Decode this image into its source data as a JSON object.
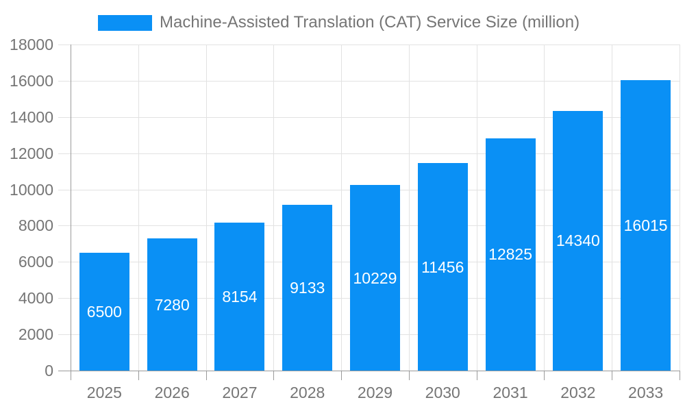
{
  "legend": {
    "label": "Machine-Assisted Translation (CAT) Service Size (million)"
  },
  "colors": {
    "bar": "#0a90f5",
    "grid": "#e2e2e2",
    "axis": "#9a9a9a",
    "text": "#757575",
    "value_label": "#ffffff",
    "background": "#ffffff"
  },
  "chart_data": {
    "type": "bar",
    "title": "Machine-Assisted Translation (CAT) Service Size (million)",
    "categories": [
      "2025",
      "2026",
      "2027",
      "2028",
      "2029",
      "2030",
      "2031",
      "2032",
      "2033"
    ],
    "values": [
      6500,
      7280,
      8154,
      9133,
      10229,
      11456,
      12825,
      14340,
      16015
    ],
    "xlabel": "",
    "ylabel": "",
    "ylim": [
      0,
      18000
    ],
    "ytick_step": 2000,
    "yticks": [
      0,
      2000,
      4000,
      6000,
      8000,
      10000,
      12000,
      14000,
      16000,
      18000
    ],
    "grid": true,
    "legend_position": "top",
    "value_label_position": "inside-center"
  }
}
